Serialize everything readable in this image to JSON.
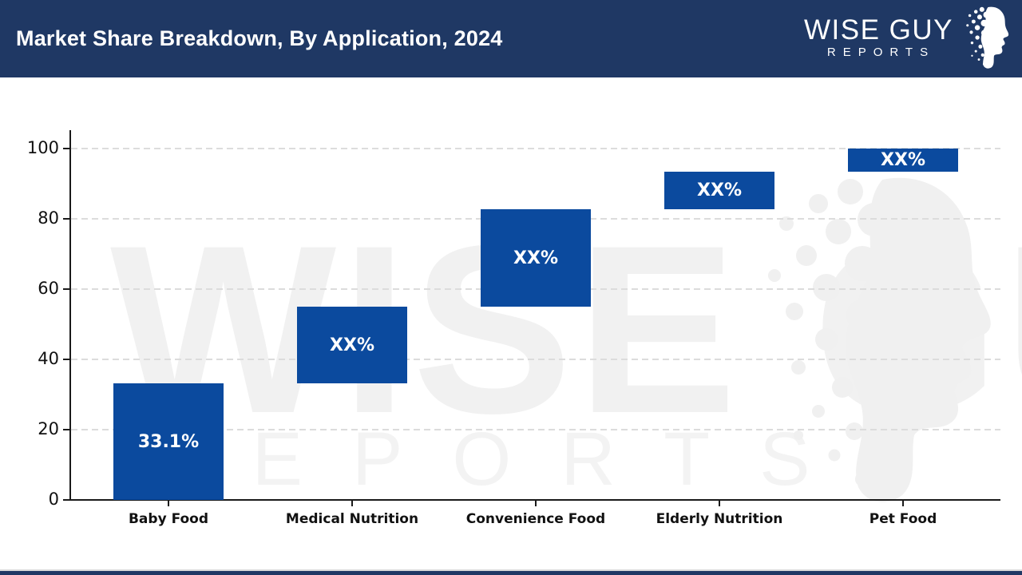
{
  "header": {
    "title": "Market Share Breakdown, By Application, 2024",
    "logo_line1": "WISE GUY",
    "logo_line2": "REPORTS"
  },
  "watermark": {
    "line1": "WISE GUY",
    "line2": "REPORTS"
  },
  "chart_data": {
    "type": "bar",
    "variant": "floating-waterfall",
    "title": "Market Share Breakdown, By Application, 2024",
    "categories": [
      "Baby Food",
      "Medical Nutrition",
      "Convenience Food",
      "Elderly Nutrition",
      "Pet Food"
    ],
    "segments": [
      {
        "category": "Baby Food",
        "start": 0,
        "end": 33.1,
        "label": "33.1%"
      },
      {
        "category": "Medical Nutrition",
        "start": 33.1,
        "end": 55.0,
        "label": "XX%"
      },
      {
        "category": "Convenience Food",
        "start": 55.0,
        "end": 82.7,
        "label": "XX%"
      },
      {
        "category": "Elderly Nutrition",
        "start": 82.7,
        "end": 93.4,
        "label": "XX%"
      },
      {
        "category": "Pet Food",
        "start": 93.4,
        "end": 100,
        "label": "XX%"
      }
    ],
    "yticks": [
      0,
      20,
      40,
      60,
      80,
      100
    ],
    "ylim": [
      0,
      107
    ],
    "xlabel": "",
    "ylabel": "",
    "grid": "horizontal-dashed",
    "legend": "none",
    "colors": {
      "bar": "#0b4a9e",
      "bar_label": "#ffffff",
      "header_bg": "#1f3864",
      "footer_bg": "#1f3864",
      "grid": "#dcdcdc",
      "axis": "#1a1a1a"
    }
  }
}
